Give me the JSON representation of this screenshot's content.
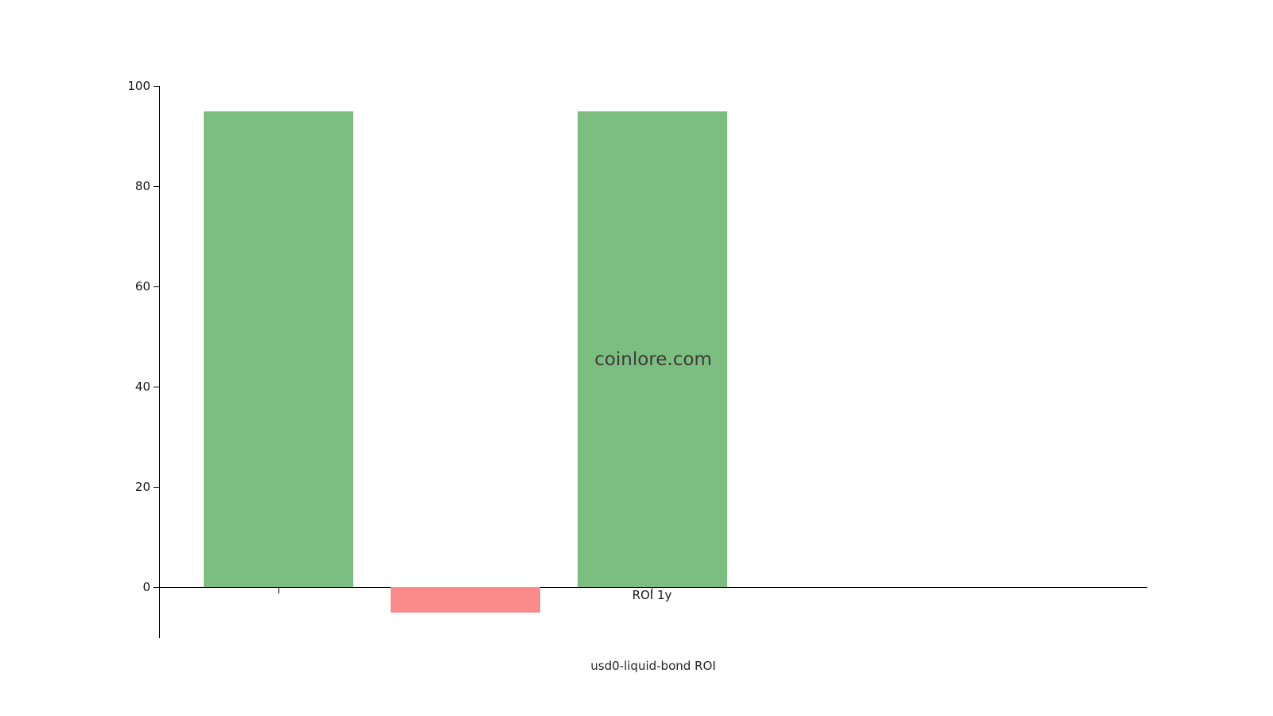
{
  "page": {
    "background_color": "#ffffff"
  },
  "watermark": {
    "text": "coinlore.com",
    "color": "#3b3b3b"
  },
  "chart_data": {
    "type": "bar",
    "title": "",
    "xlabel": "usd0-liquid-bond ROI",
    "ylabel": "",
    "categories": [
      "",
      "",
      "ROI 1y"
    ],
    "values": [
      95,
      -5,
      95
    ],
    "bar_colors": [
      "#7cbe80",
      "#fb8a8a",
      "#7cbe80"
    ],
    "positive_color": "#7cbe80",
    "negative_color": "#fb8a8a",
    "yticks": [
      0,
      20,
      40,
      60,
      80,
      100
    ],
    "ylim": [
      -10,
      100
    ],
    "grid": false,
    "legend_position": "none",
    "axis_color": "#000000",
    "tick_label_color": "#1a1a1a"
  }
}
